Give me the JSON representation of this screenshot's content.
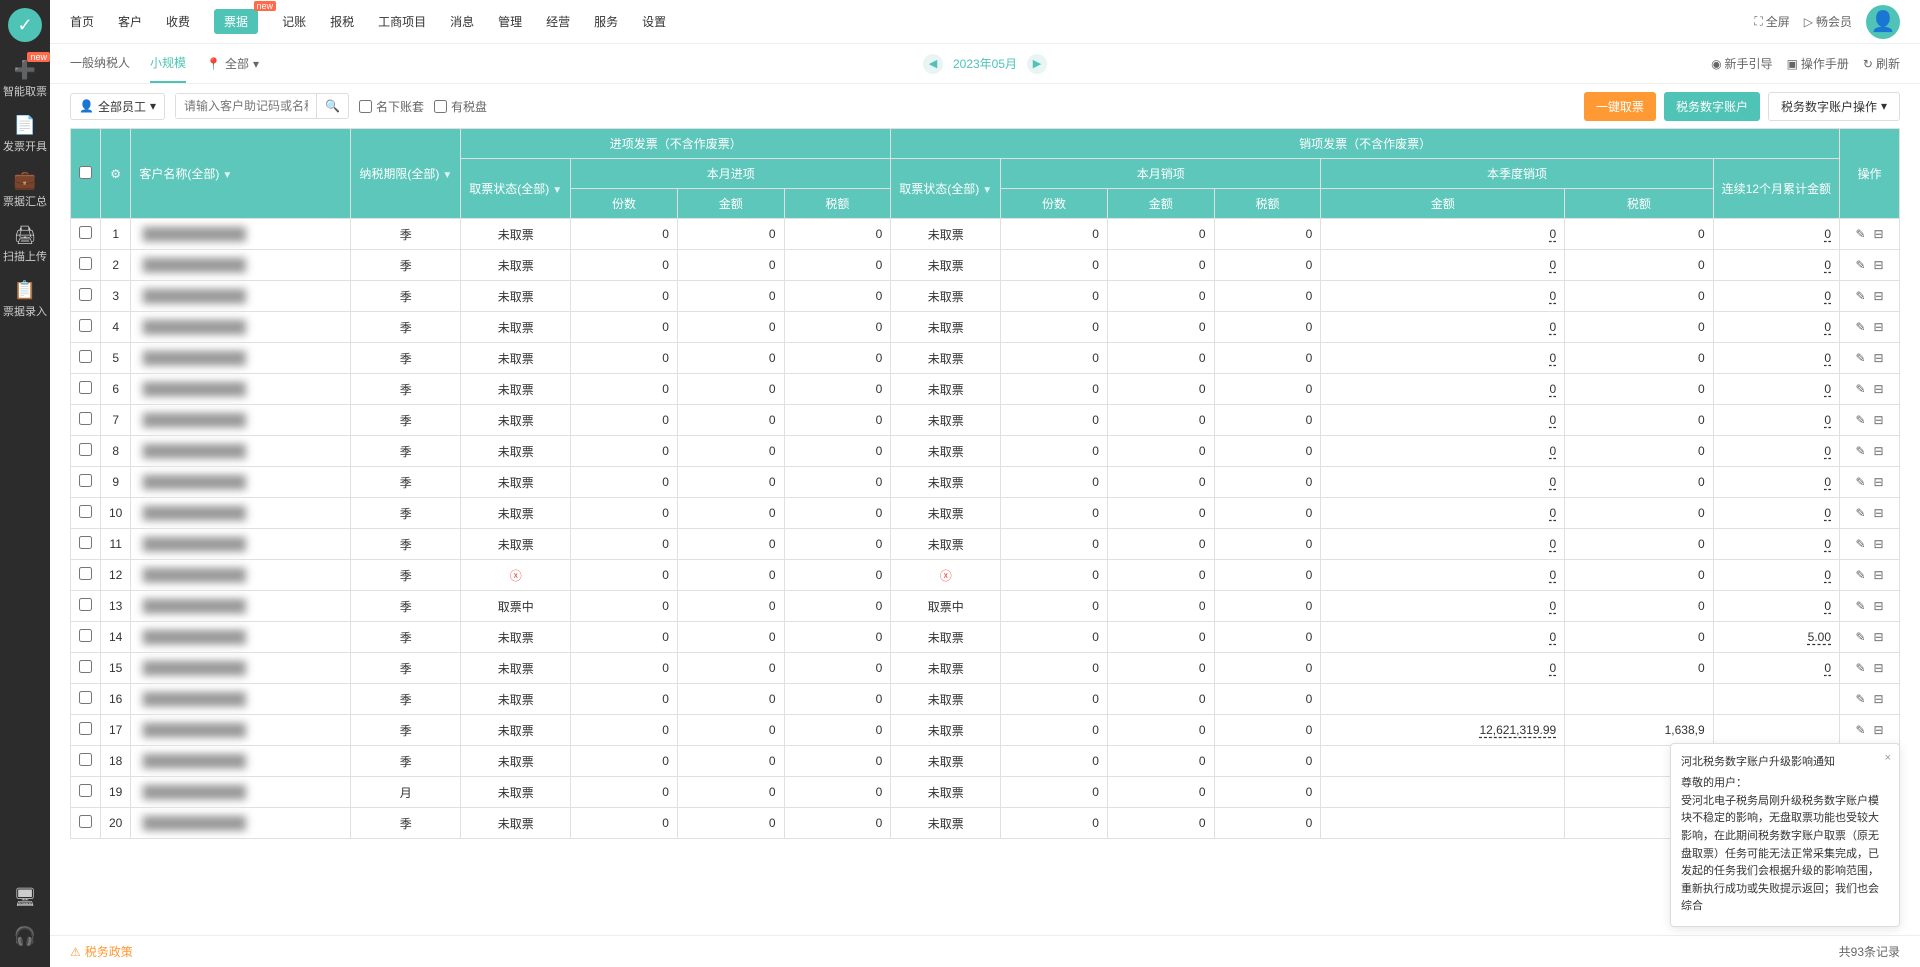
{
  "sidebar": {
    "items": [
      {
        "icon": "➕",
        "label": "智能取票",
        "badge": "new"
      },
      {
        "icon": "📄",
        "label": "发票开具"
      },
      {
        "icon": "💼",
        "label": "票据汇总"
      },
      {
        "icon": "🖨",
        "label": "扫描上传"
      },
      {
        "icon": "📋",
        "label": "票据录入"
      }
    ],
    "bottom": [
      {
        "icon": "🖥"
      },
      {
        "icon": "🎧"
      }
    ]
  },
  "topnav": {
    "items": [
      "首页",
      "客户",
      "收费",
      "票据",
      "记账",
      "报税",
      "工商项目",
      "消息",
      "管理",
      "经营",
      "服务",
      "设置"
    ],
    "active_index": 3,
    "new_tag": "new",
    "fullscreen": "全屏",
    "member": "畅会员"
  },
  "subnav": {
    "tabs": [
      "一般纳税人",
      "小规模"
    ],
    "active_index": 1,
    "region": "全部",
    "date": "2023年05月",
    "guide": "新手引导",
    "manual": "操作手册",
    "refresh": "刷新"
  },
  "filters": {
    "employee": "全部员工",
    "search_placeholder": "请输入客户助记码或名称",
    "chk1": "名下账套",
    "chk2": "有税盘",
    "btn_fetch": "一键取票",
    "btn_digital": "税务数字账户",
    "btn_ops": "税务数字账户操作"
  },
  "table": {
    "headers": {
      "customer": "客户名称(全部)",
      "period": "纳税期限(全部)",
      "in_group": "进项发票（不含作废票）",
      "out_group": "销项发票（不含作废票）",
      "in_status": "取票状态(全部)",
      "month_in": "本月进项",
      "out_status": "取票状态(全部)",
      "month_out": "本月销项",
      "quarter_out": "本季度销项",
      "ytd": "连续12个月累计金额",
      "count": "份数",
      "amount": "金额",
      "tax": "税额",
      "actions": "操作"
    },
    "rows": [
      {
        "idx": 1,
        "period": "季",
        "in_status": "未取票",
        "in_cnt": 0,
        "in_amt": "0",
        "in_tax": "0",
        "out_status": "未取票",
        "out_cnt": 0,
        "out_amt": "0",
        "out_tax": "0",
        "q_amt": "0",
        "q_tax": "0",
        "ytd": "0"
      },
      {
        "idx": 2,
        "period": "季",
        "in_status": "未取票",
        "in_cnt": 0,
        "in_amt": "0",
        "in_tax": "0",
        "out_status": "未取票",
        "out_cnt": 0,
        "out_amt": "0",
        "out_tax": "0",
        "q_amt": "0",
        "q_tax": "0",
        "ytd": "0"
      },
      {
        "idx": 3,
        "period": "季",
        "in_status": "未取票",
        "in_cnt": 0,
        "in_amt": "0",
        "in_tax": "0",
        "out_status": "未取票",
        "out_cnt": 0,
        "out_amt": "0",
        "out_tax": "0",
        "q_amt": "0",
        "q_tax": "0",
        "ytd": "0"
      },
      {
        "idx": 4,
        "period": "季",
        "in_status": "未取票",
        "in_cnt": 0,
        "in_amt": "0",
        "in_tax": "0",
        "out_status": "未取票",
        "out_cnt": 0,
        "out_amt": "0",
        "out_tax": "0",
        "q_amt": "0",
        "q_tax": "0",
        "ytd": "0"
      },
      {
        "idx": 5,
        "period": "季",
        "in_status": "未取票",
        "in_cnt": 0,
        "in_amt": "0",
        "in_tax": "0",
        "out_status": "未取票",
        "out_cnt": 0,
        "out_amt": "0",
        "out_tax": "0",
        "q_amt": "0",
        "q_tax": "0",
        "ytd": "0"
      },
      {
        "idx": 6,
        "period": "季",
        "in_status": "未取票",
        "in_cnt": 0,
        "in_amt": "0",
        "in_tax": "0",
        "out_status": "未取票",
        "out_cnt": 0,
        "out_amt": "0",
        "out_tax": "0",
        "q_amt": "0",
        "q_tax": "0",
        "ytd": "0"
      },
      {
        "idx": 7,
        "period": "季",
        "in_status": "未取票",
        "in_cnt": 0,
        "in_amt": "0",
        "in_tax": "0",
        "out_status": "未取票",
        "out_cnt": 0,
        "out_amt": "0",
        "out_tax": "0",
        "q_amt": "0",
        "q_tax": "0",
        "ytd": "0"
      },
      {
        "idx": 8,
        "period": "季",
        "in_status": "未取票",
        "in_cnt": 0,
        "in_amt": "0",
        "in_tax": "0",
        "out_status": "未取票",
        "out_cnt": 0,
        "out_amt": "0",
        "out_tax": "0",
        "q_amt": "0",
        "q_tax": "0",
        "ytd": "0"
      },
      {
        "idx": 9,
        "period": "季",
        "in_status": "未取票",
        "in_cnt": 0,
        "in_amt": "0",
        "in_tax": "0",
        "out_status": "未取票",
        "out_cnt": 0,
        "out_amt": "0",
        "out_tax": "0",
        "q_amt": "0",
        "q_tax": "0",
        "ytd": "0"
      },
      {
        "idx": 10,
        "period": "季",
        "in_status": "未取票",
        "in_cnt": 0,
        "in_amt": "0",
        "in_tax": "0",
        "out_status": "未取票",
        "out_cnt": 0,
        "out_amt": "0",
        "out_tax": "0",
        "q_amt": "0",
        "q_tax": "0",
        "ytd": "0"
      },
      {
        "idx": 11,
        "period": "季",
        "in_status": "未取票",
        "in_cnt": 0,
        "in_amt": "0",
        "in_tax": "0",
        "out_status": "未取票",
        "out_cnt": 0,
        "out_amt": "0",
        "out_tax": "0",
        "q_amt": "0",
        "q_tax": "0",
        "ytd": "0"
      },
      {
        "idx": 12,
        "period": "季",
        "in_status": "err",
        "in_cnt": 0,
        "in_amt": "0",
        "in_tax": "0",
        "out_status": "err",
        "out_cnt": 0,
        "out_amt": "0",
        "out_tax": "0",
        "q_amt": "0",
        "q_tax": "0",
        "ytd": "0"
      },
      {
        "idx": 13,
        "period": "季",
        "in_status": "取票中",
        "in_cnt": 0,
        "in_amt": "0",
        "in_tax": "0",
        "out_status": "取票中",
        "out_cnt": 0,
        "out_amt": "0",
        "out_tax": "0",
        "q_amt": "0",
        "q_tax": "0",
        "ytd": "0"
      },
      {
        "idx": 14,
        "period": "季",
        "in_status": "未取票",
        "in_cnt": 0,
        "in_amt": "0",
        "in_tax": "0",
        "out_status": "未取票",
        "out_cnt": 0,
        "out_amt": "0",
        "out_tax": "0",
        "q_amt": "0",
        "q_tax": "0",
        "ytd": "5.00"
      },
      {
        "idx": 15,
        "period": "季",
        "in_status": "未取票",
        "in_cnt": 0,
        "in_amt": "0",
        "in_tax": "0",
        "out_status": "未取票",
        "out_cnt": 0,
        "out_amt": "0",
        "out_tax": "0",
        "q_amt": "0",
        "q_tax": "0",
        "ytd": "0"
      },
      {
        "idx": 16,
        "period": "季",
        "in_status": "未取票",
        "in_cnt": 0,
        "in_amt": "0",
        "in_tax": "0",
        "out_status": "未取票",
        "out_cnt": 0,
        "out_amt": "0",
        "out_tax": "0",
        "q_amt": "",
        "q_tax": "",
        "ytd": ""
      },
      {
        "idx": 17,
        "period": "季",
        "in_status": "未取票",
        "in_cnt": 0,
        "in_amt": "0",
        "in_tax": "0",
        "out_status": "未取票",
        "out_cnt": 0,
        "out_amt": "0",
        "out_tax": "0",
        "q_amt": "12,621,319.99",
        "q_tax": "1,638,9",
        "ytd": ""
      },
      {
        "idx": 18,
        "period": "季",
        "in_status": "未取票",
        "in_cnt": 0,
        "in_amt": "0",
        "in_tax": "0",
        "out_status": "未取票",
        "out_cnt": 0,
        "out_amt": "0",
        "out_tax": "0",
        "q_amt": "",
        "q_tax": "",
        "ytd": ""
      },
      {
        "idx": 19,
        "period": "月",
        "in_status": "未取票",
        "in_cnt": 0,
        "in_amt": "0",
        "in_tax": "0",
        "out_status": "未取票",
        "out_cnt": 0,
        "out_amt": "0",
        "out_tax": "0",
        "q_amt": "",
        "q_tax": "",
        "ytd": ""
      },
      {
        "idx": 20,
        "period": "季",
        "in_status": "未取票",
        "in_cnt": 0,
        "in_amt": "0",
        "in_tax": "0",
        "out_status": "未取票",
        "out_cnt": 0,
        "out_amt": "0",
        "out_tax": "0",
        "q_amt": "",
        "q_tax": "",
        "ytd": ""
      }
    ]
  },
  "footer": {
    "policy": "税务政策",
    "total": "共93条记录"
  },
  "notify": {
    "title": "河北税务数字账户升级影响通知",
    "greeting": "尊敬的用户：",
    "body": "受河北电子税务局刚升级税务数字账户模块不稳定的影响，无盘取票功能也受较大影响，在此期间税务数字账户取票（原无盘取票）任务可能无法正常采集完成，已发起的任务我们会根据升级的影响范围，重新执行成功或失败提示返回；我们也会综合"
  }
}
